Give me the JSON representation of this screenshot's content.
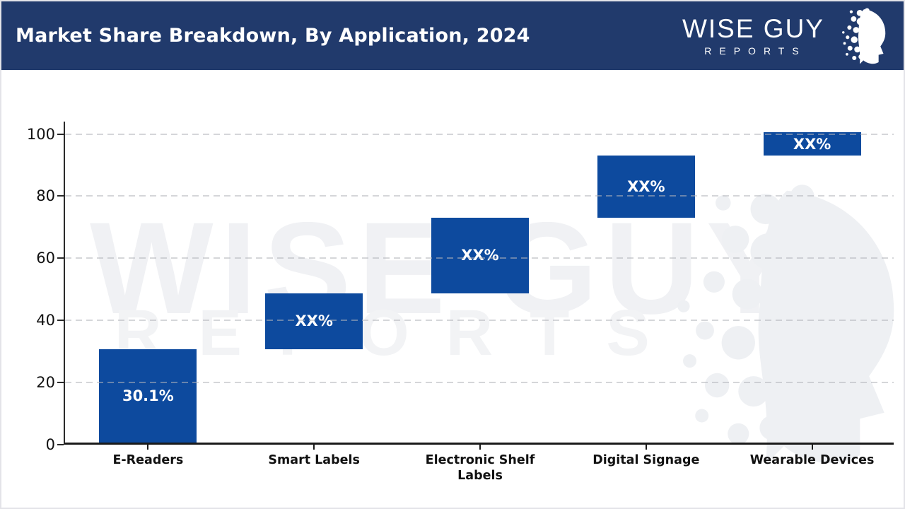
{
  "header": {
    "title": "Market Share Breakdown, By Application, 2024",
    "bg_color": "#213a6c",
    "logo": {
      "wordmark": "WISE GUY",
      "subtext": "REPORTS"
    }
  },
  "watermark": {
    "line1": "WISE GUY",
    "line2": "REPORTS"
  },
  "chart_data": {
    "type": "bar",
    "subtype": "waterfall",
    "title": "Market Share Breakdown, By Application, 2024",
    "xlabel": "",
    "ylabel": "",
    "ylim": [
      0,
      104
    ],
    "y_ticks": [
      0,
      20,
      40,
      60,
      80,
      100
    ],
    "grid": true,
    "gridline_style": "dashed",
    "bar_color": "#0d4a9e",
    "bar_label_color": "#ffffff",
    "categories": [
      "E-Readers",
      "Smart Labels",
      "Electronic Shelf Labels",
      "Digital Signage",
      "Wearable Devices"
    ],
    "segments": [
      {
        "category": "E-Readers",
        "start": 0,
        "end": 30.1,
        "value": 30.1,
        "label": "30.1%"
      },
      {
        "category": "Smart Labels",
        "start": 30.1,
        "end": 48.1,
        "value": 18.0,
        "label": "XX%"
      },
      {
        "category": "Electronic Shelf Labels",
        "start": 48.1,
        "end": 72.3,
        "value": 24.2,
        "label": "XX%"
      },
      {
        "category": "Digital Signage",
        "start": 72.3,
        "end": 92.3,
        "value": 20.0,
        "label": "XX%"
      },
      {
        "category": "Wearable Devices",
        "start": 92.3,
        "end": 100,
        "value": 7.7,
        "label": "XX%"
      }
    ]
  }
}
